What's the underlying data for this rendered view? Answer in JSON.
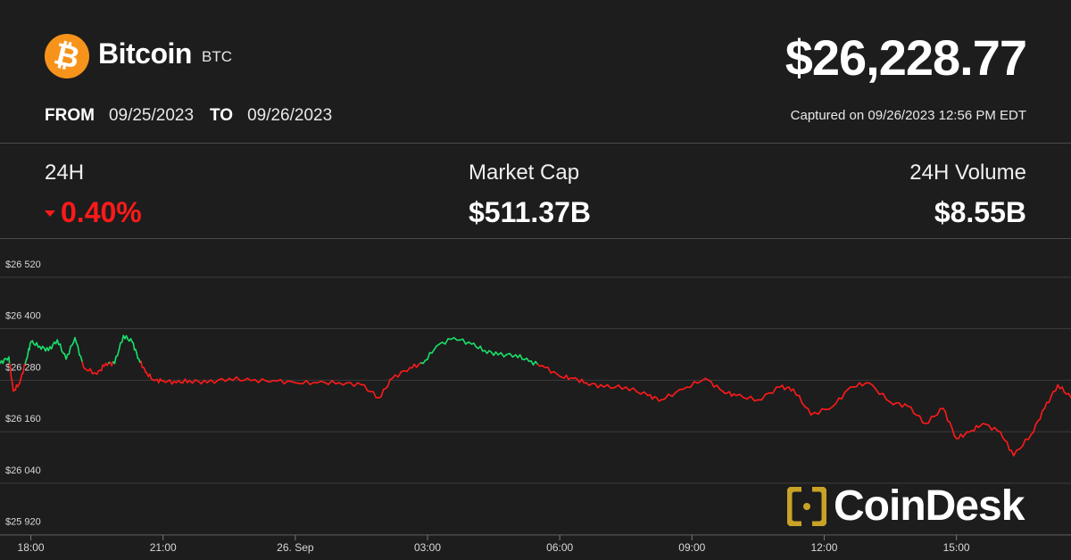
{
  "header": {
    "coin_icon": "bitcoin-icon",
    "coin_icon_glyph": "₿",
    "coin_name": "Bitcoin",
    "coin_symbol": "BTC",
    "price": "$26,228.77",
    "from_label": "FROM",
    "from_date": "09/25/2023",
    "to_label": "TO",
    "to_date": "09/26/2023",
    "captured": "Captured on 09/26/2023 12:56 PM EDT"
  },
  "stats": {
    "change_label": "24H",
    "change_value": "0.40%",
    "change_direction": "down",
    "market_cap_label": "Market Cap",
    "market_cap_value": "$511.37B",
    "volume_label": "24H Volume",
    "volume_value": "$8.55B"
  },
  "watermark": {
    "text": "CoinDesk",
    "icon": "coindesk-logo-icon"
  },
  "colors": {
    "background": "#1d1d1d",
    "up": "#19e06a",
    "down": "#ff1a1a",
    "bitcoin_orange": "#f7931a",
    "watermark_gold": "#c9a227"
  },
  "chart_data": {
    "type": "line",
    "title": "",
    "xlabel": "",
    "ylabel": "",
    "baseline": 26290,
    "ylim": [
      25890,
      26580
    ],
    "y_ticks": [
      25920,
      26040,
      26160,
      26280,
      26400,
      26520
    ],
    "y_tick_labels": [
      "$25 920",
      "$26 040",
      "$26 160",
      "$26 280",
      "$26 400",
      "$26 520"
    ],
    "x_ticks": [
      18,
      21,
      24,
      27,
      30,
      33,
      36,
      39
    ],
    "x_tick_labels": [
      "18:00",
      "21:00",
      "26. Sep",
      "03:00",
      "06:00",
      "09:00",
      "12:00",
      "15:00"
    ],
    "xlim": [
      17.3,
      41.6
    ],
    "grid": true,
    "series": [
      {
        "x": [
          17.3,
          17.5,
          17.6,
          17.75,
          17.9,
          18.0,
          18.2,
          18.4,
          18.6,
          18.8,
          19.0,
          19.2,
          19.5,
          19.7,
          19.9,
          20.1,
          20.3,
          20.45,
          20.6,
          20.8,
          21.0,
          21.3,
          21.6,
          22.0,
          22.5,
          23.0,
          23.5,
          24.0,
          24.5,
          25.0,
          25.5,
          25.9,
          26.2,
          26.6,
          26.9,
          27.2,
          27.6,
          28.0,
          28.3,
          28.6,
          29.0,
          29.3,
          29.6,
          30.0,
          30.3,
          30.6,
          31.0,
          31.5,
          32.0,
          32.3,
          32.8,
          33.3,
          33.7,
          34.0,
          34.5,
          35.0,
          35.3,
          35.7,
          36.2,
          36.6,
          37.0,
          37.5,
          37.9,
          38.3,
          38.7,
          39.0,
          39.3,
          39.6,
          40.0,
          40.3,
          40.7,
          41.0,
          41.3,
          41.6
        ],
        "y": [
          26290,
          26305,
          26225,
          26245,
          26300,
          26340,
          26330,
          26320,
          26345,
          26300,
          26350,
          26280,
          26265,
          26290,
          26290,
          26355,
          26340,
          26300,
          26270,
          26250,
          26250,
          26245,
          26250,
          26245,
          26255,
          26250,
          26250,
          26245,
          26245,
          26245,
          26240,
          26210,
          26255,
          26280,
          26290,
          26330,
          26350,
          26335,
          26320,
          26310,
          26310,
          26295,
          26285,
          26260,
          26255,
          26245,
          26235,
          26235,
          26215,
          26205,
          26230,
          26255,
          26225,
          26215,
          26205,
          26235,
          26230,
          26170,
          26190,
          26235,
          26245,
          26200,
          26190,
          26150,
          26185,
          26115,
          26130,
          26150,
          26130,
          26075,
          26125,
          26185,
          26240,
          26210
        ]
      }
    ]
  }
}
